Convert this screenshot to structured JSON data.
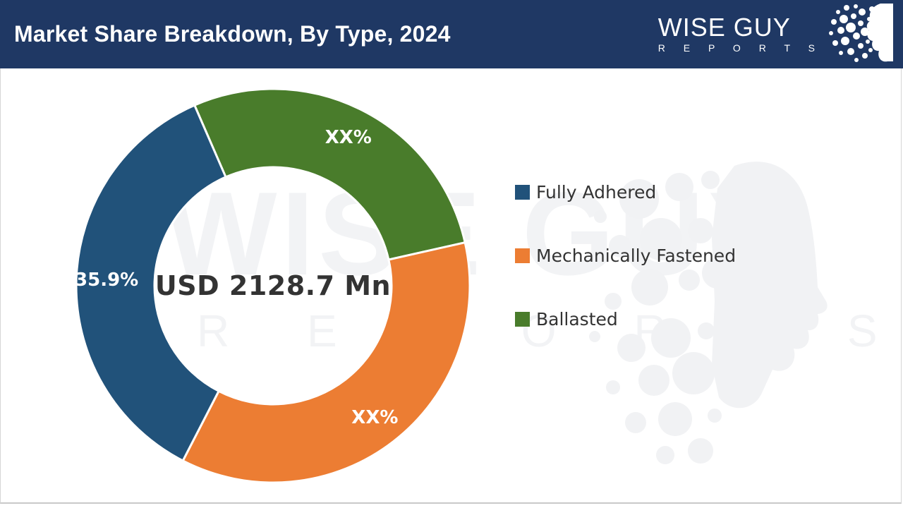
{
  "header": {
    "title": "Market Share Breakdown, By Type, 2024",
    "bg_color": "#1F3864",
    "logo": {
      "line1": "WISE GUY",
      "line2": "R E P O R T S"
    }
  },
  "watermark": {
    "line1": "WISE GUY",
    "line2": "R E P O R T S"
  },
  "chart_data": {
    "type": "pie",
    "donut": true,
    "title": "Market Share Breakdown, By Type, 2024",
    "center_text": "USD 2128.7 Mn",
    "start_angle_deg": 336.5,
    "direction": "clockwise",
    "legend_position": "right",
    "slices": [
      {
        "name": "Ballasted",
        "value_pct": 28.0,
        "label": "XX%",
        "color": "#497C2B"
      },
      {
        "name": "Mechanically Fastened",
        "value_pct": 36.1,
        "label": "XX%",
        "color": "#EC7D33"
      },
      {
        "name": "Fully Adhered",
        "value_pct": 35.9,
        "label": "35.9%",
        "color": "#21527A"
      }
    ],
    "legend": [
      {
        "name": "Fully Adhered",
        "color": "#21527A"
      },
      {
        "name": "Mechanically Fastened",
        "color": "#EC7D33"
      },
      {
        "name": "Ballasted",
        "color": "#497C2B"
      }
    ]
  }
}
